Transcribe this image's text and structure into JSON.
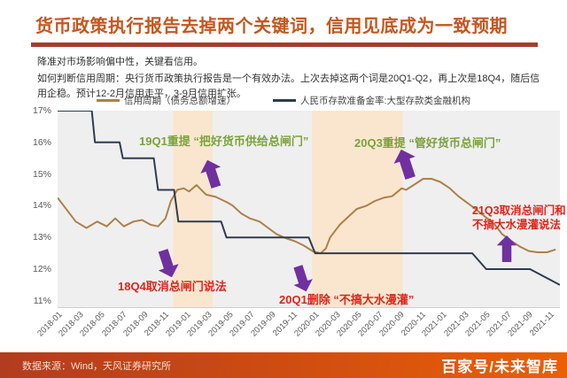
{
  "header": {
    "title": "货币政策执行报告去掉两个关键词，信用见底成为一致预期"
  },
  "intro": {
    "line1": "降准对市场影响偏中性，关键看信用。",
    "line2": "如何判断信用周期：央行货币政策执行报告是一个有效办法。上次去掉这两个词是20Q1-Q2，再上次是18Q4，随后信用企稳。预计12-2月信用走平，3-9月信用扩张。"
  },
  "colors": {
    "title": "#c6561f",
    "title_bar": "#a83d28",
    "credit_line": "#ad8048",
    "rrr_line": "#2f3b50",
    "band": "#fae6cf",
    "annotation_green": "#7aa23c",
    "annotation_red": "#e0241a",
    "arrow_purple": "#7030a0"
  },
  "annotations": {
    "a19q1": "19Q1重提 “把好货币供给总闸门”",
    "a20q3": "20Q3重提 “管好货币总闸门”",
    "a18q4": "18Q4取消总闸门说法",
    "a20q1": "20Q1删除 “不搞大水漫灌”",
    "a21q3_line1": "21Q3取消总闸门和",
    "a21q3_line2": "不搞大水漫灌说法"
  },
  "chart_data": {
    "type": "line",
    "title": "",
    "xlabel": "",
    "ylabel": "",
    "ylim": [
      10.8,
      17.0
    ],
    "grid": false,
    "legend_position": "top",
    "x_unit": "months since 2018-01 (0) … 2021-12 (47)",
    "x_range": [
      0,
      47
    ],
    "y_ticks": [
      "17%",
      "16%",
      "15%",
      "14%",
      "13%",
      "12%",
      "11%"
    ],
    "x_ticks": [
      "2018-01",
      "2018-03",
      "2018-05",
      "2018-07",
      "2018-09",
      "2018-11",
      "2019-01",
      "2019-03",
      "2019-05",
      "2019-07",
      "2019-09",
      "2019-11",
      "2020-01",
      "2020-03",
      "2020-05",
      "2020-07",
      "2020-09",
      "2020-11",
      "2021-01",
      "2021-03",
      "2021-05",
      "2021-07",
      "2021-09",
      "2021-11"
    ],
    "highlight_bands": [
      {
        "x": [
          10.8,
          14.5
        ]
      },
      {
        "x": [
          23.8,
          32.3
        ]
      }
    ],
    "series": [
      {
        "name": "信用周期（债务总额增速）",
        "color": "#ad8048",
        "points": [
          [
            0,
            14.25
          ],
          [
            1.7,
            13.5
          ],
          [
            2.7,
            13.3
          ],
          [
            3.7,
            13.5
          ],
          [
            4.6,
            13.35
          ],
          [
            5.4,
            13.6
          ],
          [
            6.2,
            13.35
          ],
          [
            7.1,
            13.5
          ],
          [
            7.9,
            13.55
          ],
          [
            8.7,
            13.4
          ],
          [
            9.4,
            13.35
          ],
          [
            10.1,
            13.6
          ],
          [
            10.6,
            14.15
          ],
          [
            11.2,
            14.5
          ],
          [
            11.8,
            14.55
          ],
          [
            12.3,
            14.45
          ],
          [
            13.0,
            14.65
          ],
          [
            13.9,
            14.35
          ],
          [
            14.8,
            14.28
          ],
          [
            15.9,
            14.1
          ],
          [
            16.4,
            14.0
          ],
          [
            17.2,
            13.75
          ],
          [
            18.0,
            13.6
          ],
          [
            18.9,
            13.5
          ],
          [
            19.7,
            13.3
          ],
          [
            20.5,
            13.1
          ],
          [
            21.4,
            12.97
          ],
          [
            22.2,
            12.88
          ],
          [
            23.0,
            12.75
          ],
          [
            23.9,
            12.56
          ],
          [
            24.6,
            12.5
          ],
          [
            25.1,
            12.65
          ],
          [
            25.5,
            13.0
          ],
          [
            26.4,
            13.4
          ],
          [
            27.2,
            13.65
          ],
          [
            28.0,
            13.9
          ],
          [
            28.9,
            14.0
          ],
          [
            29.7,
            14.15
          ],
          [
            30.5,
            14.25
          ],
          [
            31.3,
            14.3
          ],
          [
            32.2,
            14.55
          ],
          [
            32.6,
            14.5
          ],
          [
            33.3,
            14.65
          ],
          [
            34.2,
            14.85
          ],
          [
            35.0,
            14.85
          ],
          [
            35.8,
            14.75
          ],
          [
            36.7,
            14.55
          ],
          [
            37.5,
            14.3
          ],
          [
            38.3,
            14.1
          ],
          [
            39.1,
            13.9
          ],
          [
            40.0,
            13.65
          ],
          [
            40.8,
            13.45
          ],
          [
            41.6,
            13.1
          ],
          [
            42.4,
            12.9
          ],
          [
            43.3,
            12.7
          ],
          [
            44.1,
            12.57
          ],
          [
            44.9,
            12.53
          ],
          [
            45.8,
            12.53
          ],
          [
            46.6,
            12.62
          ]
        ]
      },
      {
        "name": "人民币存款准备金率:大型存款类金融机构",
        "color": "#2f3b50",
        "points": [
          [
            0,
            17
          ],
          [
            3.2,
            17
          ],
          [
            3.5,
            16
          ],
          [
            5.8,
            16
          ],
          [
            6.1,
            15.5
          ],
          [
            9.0,
            15.5
          ],
          [
            9.4,
            14.5
          ],
          [
            10.9,
            14.5
          ],
          [
            11.3,
            13.5
          ],
          [
            15.3,
            13.5
          ],
          [
            15.8,
            13
          ],
          [
            23.5,
            13
          ],
          [
            24.1,
            12.5
          ],
          [
            38.8,
            12.5
          ],
          [
            40.1,
            12
          ],
          [
            44.2,
            12
          ],
          [
            47,
            11.5
          ]
        ]
      }
    ],
    "annotations": [
      {
        "text": "19Q1重提 “把好货币供给总闸门”",
        "color": "#7aa23c"
      },
      {
        "text": "20Q3重提 “管好货币总闸门”",
        "color": "#7aa23c"
      },
      {
        "text": "18Q4取消总闸门说法",
        "color": "#e0241a"
      },
      {
        "text": "20Q1删除 “不搞大水漫灌”",
        "color": "#e0241a"
      },
      {
        "text": "21Q3取消总闸门和不搞大水漫灌说法",
        "color": "#e0241a"
      }
    ]
  },
  "footer": {
    "source": "数据来源：Wind，天风证券研究所",
    "brand": "百家号/未来智库"
  }
}
